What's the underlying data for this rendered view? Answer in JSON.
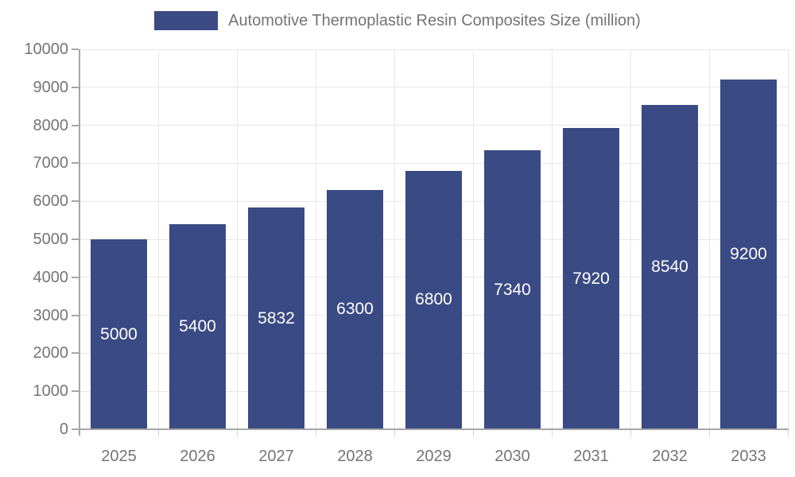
{
  "chart_data": {
    "type": "bar",
    "title": "Automotive Thermoplastic Resin Composites Size (million)",
    "legend": {
      "label": "Automotive Thermoplastic Resin Composites Size (million)",
      "position": "top"
    },
    "categories": [
      "2025",
      "2026",
      "2027",
      "2028",
      "2029",
      "2030",
      "2031",
      "2032",
      "2033"
    ],
    "values": [
      5000,
      5400,
      5832,
      6300,
      6800,
      7340,
      7920,
      8540,
      9200
    ],
    "xlabel": "",
    "ylabel": "",
    "ylim": [
      0,
      10000
    ],
    "yticks": [
      0,
      1000,
      2000,
      3000,
      4000,
      5000,
      6000,
      7000,
      8000,
      9000,
      10000
    ],
    "grid": true,
    "value_labels_shown": true,
    "colors": {
      "bar": "#3A4A84",
      "value_label": "#FFFFFF",
      "axis_line": "#A6A6A6",
      "grid_line": "#E7E7EA",
      "tick_line": "#D6D6D6",
      "axis_text": "#757575",
      "legend_text": "#747474",
      "background": "#FFFFFF"
    }
  }
}
